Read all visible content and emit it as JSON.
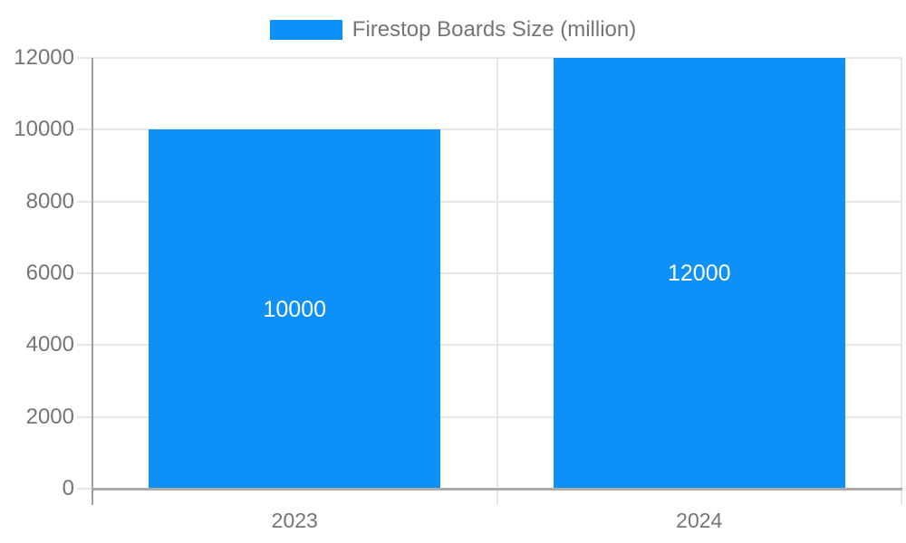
{
  "chart_data": {
    "type": "bar",
    "title": "",
    "categories": [
      "2023",
      "2024"
    ],
    "series": [
      {
        "name": "Firestop Boards Size (million)",
        "values": [
          10000,
          12000
        ]
      }
    ],
    "bar_value_labels": [
      "10000",
      "12000"
    ],
    "y_ticks": [
      0,
      2000,
      4000,
      6000,
      8000,
      10000,
      12000
    ],
    "ylim": [
      0,
      12000
    ],
    "xlabel": "",
    "ylabel": "",
    "grid": true,
    "legend_position": "top-center"
  },
  "colors": {
    "bar": "#0e90f9",
    "axis_text": "#757575",
    "gridline": "#e6e6e6",
    "y_axis_line": "#9e9e9e",
    "x_axis_line": "#ababab",
    "bar_label_text": "#ffffff",
    "background": "#ffffff"
  }
}
